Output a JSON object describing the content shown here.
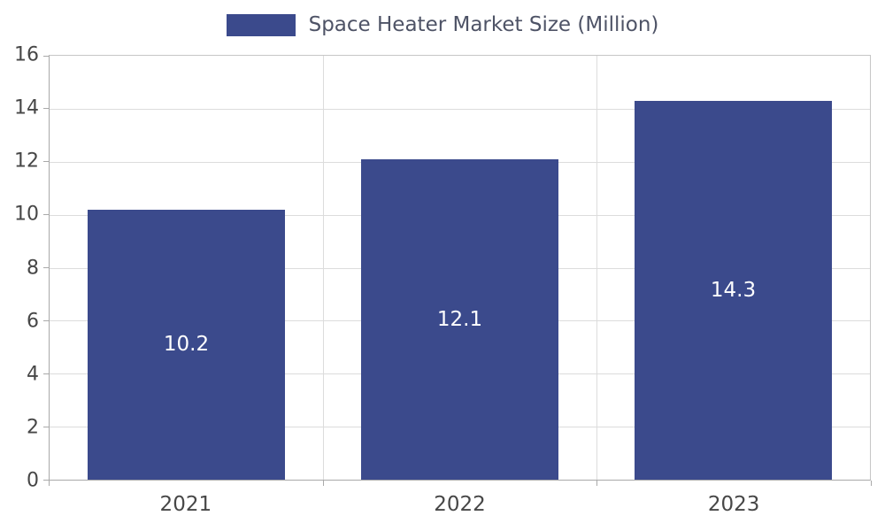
{
  "chart_data": {
    "type": "bar",
    "title": "Space Heater Market Size (Million)",
    "categories": [
      "2021",
      "2022",
      "2023"
    ],
    "values": [
      10.2,
      12.1,
      14.3
    ],
    "bar_labels": [
      "10.2",
      "12.1",
      "14.3"
    ],
    "ylim": [
      0,
      16
    ],
    "yticks": [
      0,
      2,
      4,
      6,
      8,
      10,
      12,
      14,
      16
    ],
    "xlabel": "",
    "ylabel": "",
    "grid": true,
    "legend_position": "top-center"
  },
  "colors": {
    "bar": "#3b4a8c",
    "bar_value_text": "#ffffff",
    "grid_line": "#dcdcdc",
    "axis_line": "#a9a9a9",
    "tick_text": "#474747",
    "legend_text": "#4e5366",
    "background": "#ffffff"
  }
}
